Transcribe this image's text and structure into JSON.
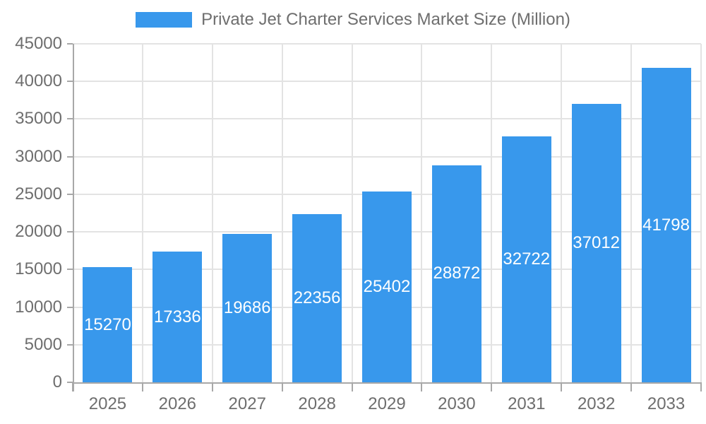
{
  "legend": {
    "label": "Private Jet Charter Services Market Size (Million)",
    "swatch_color": "#3898EC"
  },
  "chart_data": {
    "type": "bar",
    "title": "Private Jet Charter Services Market Size (Million)",
    "categories": [
      "2025",
      "2026",
      "2027",
      "2028",
      "2029",
      "2030",
      "2031",
      "2032",
      "2033"
    ],
    "values": [
      15270,
      17336,
      19686,
      22356,
      25402,
      28872,
      32722,
      37012,
      41798
    ],
    "series": [
      {
        "name": "Private Jet Charter Services Market Size (Million)",
        "values": [
          15270,
          17336,
          19686,
          22356,
          25402,
          28872,
          32722,
          37012,
          41798
        ]
      }
    ],
    "xlabel": "",
    "ylabel": "",
    "ylim": [
      0,
      45000
    ],
    "yticks": [
      0,
      5000,
      10000,
      15000,
      20000,
      25000,
      30000,
      35000,
      40000,
      45000
    ],
    "grid": true,
    "legend_position": "top",
    "value_label_position": "inside-center",
    "bar_color": "#3898EC",
    "bar_label_color": "#FFFFFF",
    "grid_color": "#E3E3E3",
    "axis_color": "#A8A8A8",
    "tick_label_color": "#6E6E6E"
  }
}
